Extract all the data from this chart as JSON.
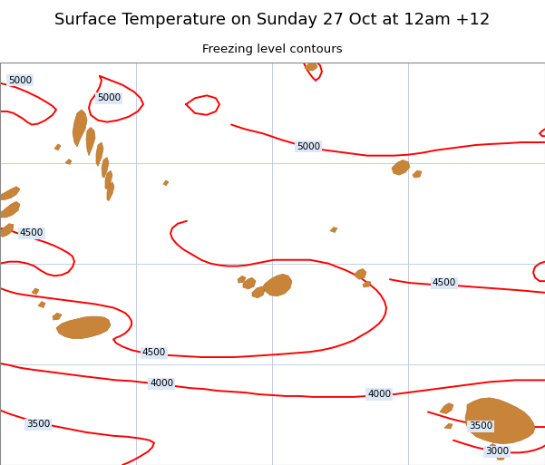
{
  "title": "Surface Temperature on Sunday 27 Oct at 12am +12",
  "subtitle": "Freezing level contours",
  "bg_color": "#dce8f8",
  "contour_color": "#ff0000",
  "land_color_fill": "#c8853a",
  "land_color_edge": "#b8742a",
  "grid_color": "#b8c8e0",
  "title_fontsize": 13,
  "subtitle_fontsize": 9.5,
  "figsize": [
    6.01,
    5.13
  ],
  "dpi": 100,
  "contour_linewidth": 1.4,
  "label_fontsize": 7.5
}
